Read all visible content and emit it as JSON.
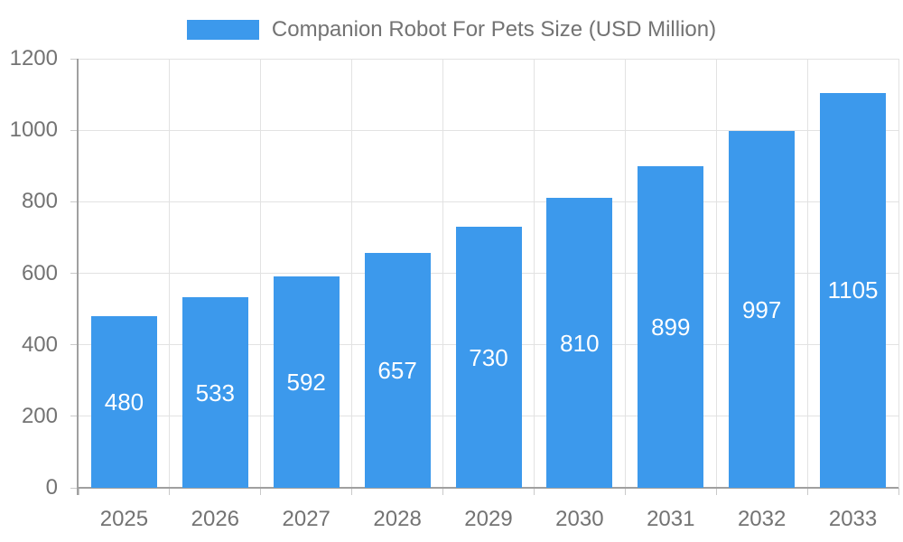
{
  "legend": {
    "label": "Companion Robot For Pets Size (USD Million)"
  },
  "chart_data": {
    "type": "bar",
    "title": "Companion Robot For Pets Size (USD Million)",
    "series_name": "Companion Robot For Pets Size (USD Million)",
    "categories": [
      "2025",
      "2026",
      "2027",
      "2028",
      "2029",
      "2030",
      "2031",
      "2032",
      "2033"
    ],
    "values": [
      480,
      533,
      592,
      657,
      730,
      810,
      899,
      997,
      1105
    ],
    "xlabel": "",
    "ylabel": "",
    "ylim": [
      0,
      1200
    ],
    "yticks": [
      0,
      200,
      400,
      600,
      800,
      1000,
      1200
    ],
    "grid": true,
    "legend_position": "top-center",
    "bar_labels_inside": true,
    "colors": {
      "bar": "#3C99EC",
      "bar_value_text": "#ffffff",
      "tick_label_text": "#737373",
      "legend_text": "#737373",
      "grid_line": "#e2e2e2",
      "tick_mark": "#c9c9c9",
      "axis_line": "#a0a0a0",
      "background": "#ffffff"
    }
  }
}
